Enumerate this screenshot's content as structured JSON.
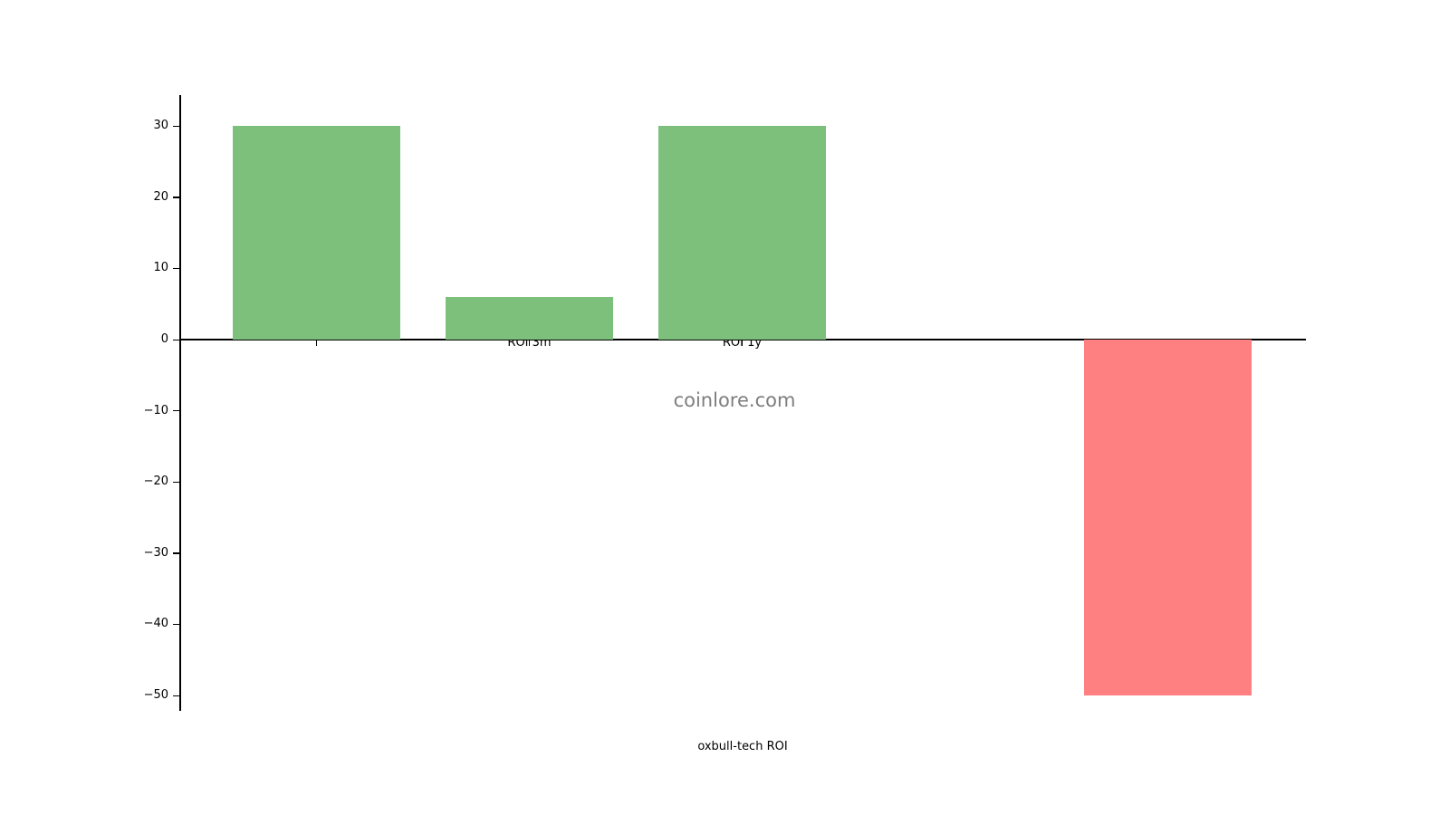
{
  "watermark": {
    "text": "coinlore.com",
    "color": "#7e7e7e"
  },
  "colors": {
    "positive_bar": "#7cc07c",
    "negative_bar": "#ff8080",
    "axis": "#000000",
    "watermark": "#7e7e7e"
  },
  "chart_data": {
    "type": "bar",
    "title": "",
    "xlabel": "oxbull-tech ROI",
    "ylabel": "",
    "categories": [
      "",
      "ROI 3m",
      "ROI 1y",
      "",
      ""
    ],
    "values": [
      30,
      6,
      30,
      0,
      -50
    ],
    "bar_colors": [
      "#7cc07c",
      "#7cc07c",
      "#7cc07c",
      "#7cc07c",
      "#ff8080"
    ],
    "yticks": [
      30,
      20,
      10,
      0,
      -10,
      -20,
      -30,
      -40,
      -50
    ],
    "ytick_labels": [
      "30",
      "20",
      "10",
      "0",
      "−10",
      "−20",
      "−30",
      "−40",
      "−50"
    ],
    "x_ticks_shown": [
      0,
      1,
      2
    ],
    "ylim": [
      -52,
      34
    ],
    "grid": false,
    "legend": false
  }
}
